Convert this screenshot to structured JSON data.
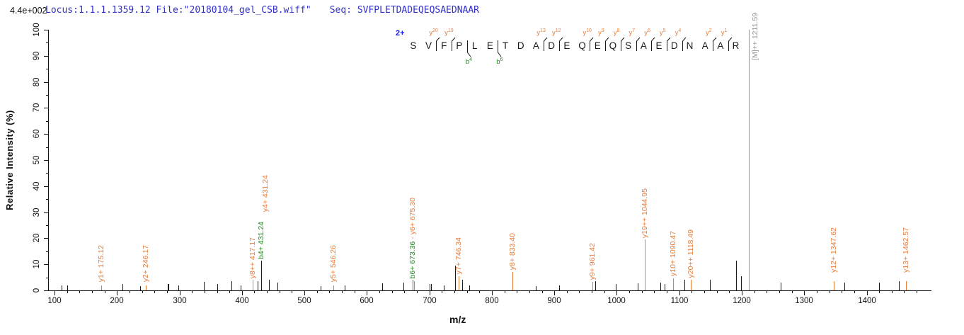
{
  "header": {
    "intensity_scale": "4.4e+002",
    "locus_file": "Locus:1.1.1.1359.12 File:\"20180104_gel_CSB.wiff\"",
    "seq": "Seq: SVFPLETDADEQEQSAEDNAAR"
  },
  "colors": {
    "y_ion": "#E87D3A",
    "b_ion": "#1F8A1F",
    "unassigned": "#1A1A1A",
    "precursor": "#969696",
    "header_text": "#3030C8",
    "charge_text": "#1414E6"
  },
  "annotation": {
    "charge": "2+",
    "precursor_label": "[M]++ 1211.59",
    "residues": [
      {
        "aa": "S"
      },
      {
        "aa": "V"
      },
      {
        "aa": "F",
        "y": "y20"
      },
      {
        "aa": "P",
        "y": "y19"
      },
      {
        "aa": "L",
        "b": "b4"
      },
      {
        "aa": "E"
      },
      {
        "aa": "T",
        "b": "b6"
      },
      {
        "aa": "D"
      },
      {
        "aa": "A"
      },
      {
        "aa": "D",
        "y": "y13"
      },
      {
        "aa": "E",
        "y": "y12"
      },
      {
        "aa": "Q"
      },
      {
        "aa": "E",
        "y": "y10"
      },
      {
        "aa": "Q",
        "y": "y9"
      },
      {
        "aa": "S",
        "y": "y8"
      },
      {
        "aa": "A",
        "y": "y7"
      },
      {
        "aa": "E",
        "y": "y6"
      },
      {
        "aa": "D",
        "y": "y5"
      },
      {
        "aa": "N",
        "y": "y4"
      },
      {
        "aa": "A"
      },
      {
        "aa": "A",
        "y": "y2"
      },
      {
        "aa": "R",
        "y": "y1"
      }
    ]
  },
  "chart_data": {
    "type": "bar",
    "subtype": "ms2-spectrum-stick-plot",
    "xlabel": "m/z",
    "ylabel": "Relative Intensity (%)",
    "xlim": [
      100,
      1500
    ],
    "ylim": [
      0,
      100
    ],
    "x_major_step": 100,
    "x_last_labeled_tick": 1400,
    "x_minor_step": 20,
    "y_major_step": 10,
    "y_minor_step": 5,
    "grid": false,
    "intensity_full_scale": "4.4e+002",
    "peaks": [
      {
        "m": 111,
        "i": 2,
        "c": "x"
      },
      {
        "m": 120,
        "i": 2,
        "c": "x"
      },
      {
        "m": 175.12,
        "i": 2,
        "c": "y",
        "labels": [
          {
            "p": [
              [
                "y",
                "y1+ 175.12"
              ]
            ],
            "g": 4
          }
        ]
      },
      {
        "m": 209,
        "i": 2.5,
        "c": "x"
      },
      {
        "m": 237,
        "i": 1.5,
        "c": "x"
      },
      {
        "m": 246.17,
        "i": 2,
        "c": "y",
        "labels": [
          {
            "p": [
              [
                "y",
                "y2+ 246.17"
              ]
            ],
            "g": 4
          }
        ]
      },
      {
        "m": 281,
        "i": 2.5,
        "c": "x",
        "w": 2
      },
      {
        "m": 298,
        "i": 2,
        "c": "x"
      },
      {
        "m": 339,
        "i": 3.3,
        "c": "x"
      },
      {
        "m": 360,
        "i": 2.5,
        "c": "x"
      },
      {
        "m": 383,
        "i": 3.5,
        "c": "x"
      },
      {
        "m": 398,
        "i": 2,
        "c": "x"
      },
      {
        "m": 417.17,
        "i": 4,
        "c": "y",
        "labels": [
          {
            "p": [
              [
                "y",
                "y8++ 417.17"
              ]
            ],
            "g": 2
          }
        ]
      },
      {
        "m": 425,
        "i": 3.5,
        "c": "x"
      },
      {
        "m": 431.24,
        "i": 11.5,
        "c": "x",
        "labels": [
          {
            "p": [
              [
                "b",
                "b4+ 431.24"
              ]
            ],
            "g": 2
          },
          {
            "p": [
              [
                "y",
                "y4+ 431.24"
              ]
            ],
            "g": 68,
            "dx": 6
          }
        ]
      },
      {
        "m": 443,
        "i": 4,
        "c": "x"
      },
      {
        "m": 457,
        "i": 3,
        "c": "x"
      },
      {
        "m": 526,
        "i": 1.5,
        "c": "x"
      },
      {
        "m": 546.26,
        "i": 2,
        "c": "y",
        "labels": [
          {
            "p": [
              [
                "y",
                "y5+ 546.26"
              ]
            ],
            "g": 4
          }
        ]
      },
      {
        "m": 564,
        "i": 2,
        "c": "x"
      },
      {
        "m": 625,
        "i": 2.7,
        "c": "x"
      },
      {
        "m": 658,
        "i": 3,
        "c": "x"
      },
      {
        "m": 673.36,
        "i": 4,
        "c": "b",
        "labels": [
          {
            "p": [
              [
                "b",
                "b6+ 673.36"
              ],
              [
                "y",
                " - "
              ],
              [
                "y",
                "y6+ 675.30"
              ]
            ],
            "g": 2
          }
        ]
      },
      {
        "m": 675.3,
        "i": 3.5,
        "c": "y"
      },
      {
        "m": 700,
        "i": 2.5,
        "c": "x"
      },
      {
        "m": 703,
        "i": 2.5,
        "c": "x"
      },
      {
        "m": 723,
        "i": 2,
        "c": "x"
      },
      {
        "m": 741,
        "i": 9.5,
        "c": "x"
      },
      {
        "m": 746.34,
        "i": 5.5,
        "c": "y",
        "labels": [
          {
            "p": [
              [
                "y",
                "y7+ 746.34"
              ]
            ],
            "g": 3
          }
        ]
      },
      {
        "m": 753,
        "i": 4,
        "c": "x"
      },
      {
        "m": 764,
        "i": 2,
        "c": "x"
      },
      {
        "m": 833.4,
        "i": 7,
        "c": "y",
        "labels": [
          {
            "p": [
              [
                "y",
                "y8+ 833.40"
              ]
            ],
            "g": 3
          }
        ]
      },
      {
        "m": 870,
        "i": 1.5,
        "c": "x"
      },
      {
        "m": 908,
        "i": 2,
        "c": "x"
      },
      {
        "m": 961.42,
        "i": 3.3,
        "c": "y",
        "labels": [
          {
            "p": [
              [
                "y",
                "y9+ 961.42"
              ]
            ],
            "g": 3
          }
        ]
      },
      {
        "m": 966,
        "i": 3.5,
        "c": "x"
      },
      {
        "m": 998,
        "i": 2.5,
        "c": "x"
      },
      {
        "m": 1034,
        "i": 2.7,
        "c": "x"
      },
      {
        "m": 1044.95,
        "i": 19.5,
        "c": "y",
        "labels": [
          {
            "p": [
              [
                "y",
                "y19++ 1044.95"
              ]
            ],
            "g": 2
          }
        ]
      },
      {
        "m": 1070,
        "i": 3,
        "c": "x"
      },
      {
        "m": 1076,
        "i": 2.5,
        "c": "x"
      },
      {
        "m": 1090.47,
        "i": 4.6,
        "c": "y",
        "labels": [
          {
            "p": [
              [
                "y",
                "y10+ 1090.47"
              ]
            ],
            "g": 3
          }
        ]
      },
      {
        "m": 1108,
        "i": 4,
        "c": "x"
      },
      {
        "m": 1118.49,
        "i": 4,
        "c": "y",
        "labels": [
          {
            "p": [
              [
                "y",
                "y20++ 1118.49"
              ]
            ],
            "g": 3
          }
        ]
      },
      {
        "m": 1149,
        "i": 4,
        "c": "x"
      },
      {
        "m": 1191,
        "i": 11.5,
        "c": "x"
      },
      {
        "m": 1199,
        "i": 5.5,
        "c": "x"
      },
      {
        "m": 1211.59,
        "i": 100,
        "c": "m",
        "labels": [
          {
            "p": [
              [
                "m",
                "[M]++ 1211.59"
              ]
            ],
            "side": "right",
            "top": 18
          }
        ]
      },
      {
        "m": 1262,
        "i": 3,
        "c": "x"
      },
      {
        "m": 1347.62,
        "i": 3.5,
        "c": "y",
        "labels": [
          {
            "p": [
              [
                "y",
                "y12+ 1347.62"
              ]
            ],
            "g": 12
          }
        ]
      },
      {
        "m": 1364,
        "i": 3,
        "c": "x"
      },
      {
        "m": 1420,
        "i": 3,
        "c": "x"
      },
      {
        "m": 1451,
        "i": 3.5,
        "c": "x"
      },
      {
        "m": 1462.57,
        "i": 3.5,
        "c": "y",
        "labels": [
          {
            "p": [
              [
                "y",
                "y13+ 1462.57"
              ]
            ],
            "g": 12
          }
        ]
      }
    ]
  }
}
